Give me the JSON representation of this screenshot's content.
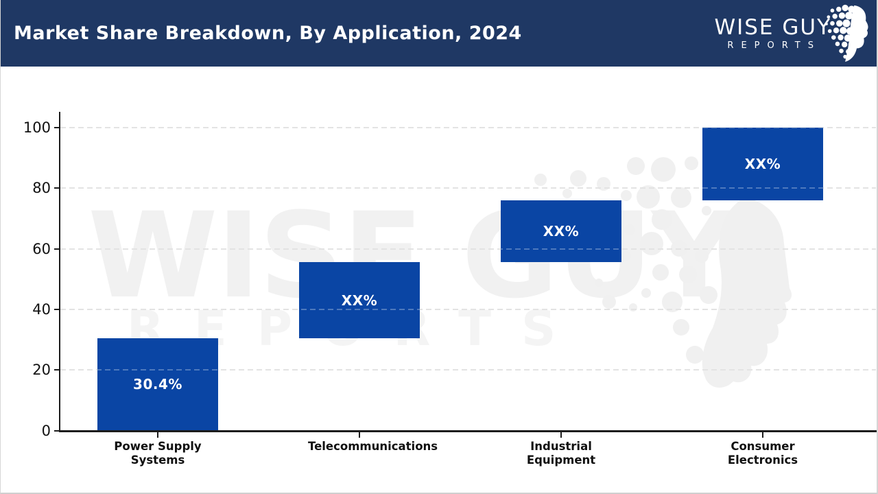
{
  "header": {
    "title": "Market Share Breakdown, By Application, 2024",
    "logo": {
      "line1": "WISE GUY",
      "line2": "REPORTS"
    }
  },
  "watermark": {
    "line1": "WISE GUY",
    "line2": "REPORTS"
  },
  "colors": {
    "header_bg": "#1f3864",
    "bar": "#0a45a4",
    "grid": "#d8d8d8",
    "axis": "#1c1c1c",
    "tick_text": "#111111",
    "bar_label_text": "#ffffff",
    "watermark": "#f1f1f1"
  },
  "chart_data": {
    "type": "bar",
    "subtype": "waterfall",
    "title": "Market Share Breakdown, By Application, 2024",
    "categories": [
      "Power Supply Systems",
      "Telecommunications",
      "Industrial Equipment",
      "Consumer Electronics"
    ],
    "bars": [
      {
        "category": "Power Supply Systems",
        "start": 0,
        "end": 30.4,
        "label": "30.4%"
      },
      {
        "category": "Telecommunications",
        "start": 30.4,
        "end": 55.5,
        "label": "XX%"
      },
      {
        "category": "Industrial Equipment",
        "start": 55.5,
        "end": 75.9,
        "label": "XX%"
      },
      {
        "category": "Consumer Electronics",
        "start": 75.9,
        "end": 100,
        "label": "XX%"
      }
    ],
    "ylim": [
      0,
      100
    ],
    "yticks": [
      0,
      20,
      40,
      60,
      80,
      100
    ],
    "xlabel": "",
    "ylabel": "",
    "grid": "dashed-horizontal",
    "legend": "none"
  }
}
